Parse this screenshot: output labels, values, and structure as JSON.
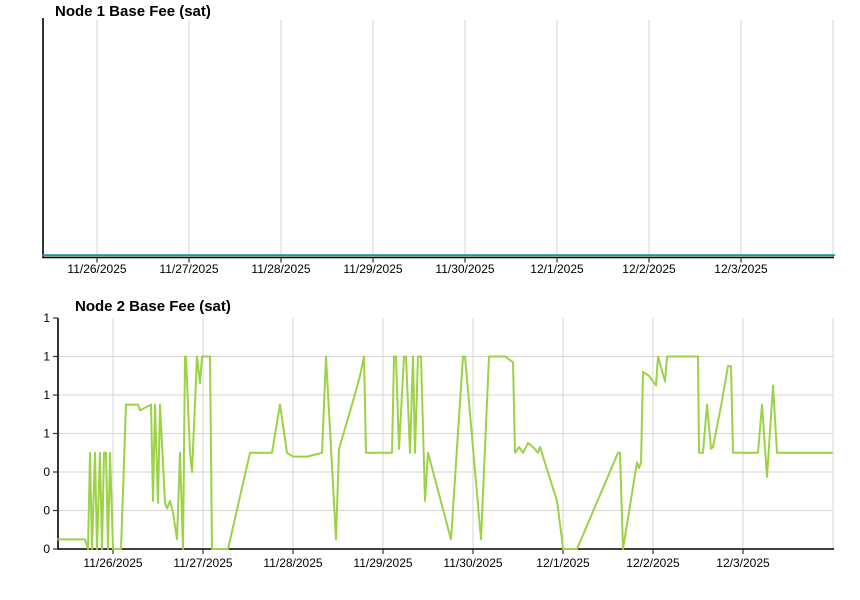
{
  "colors": {
    "node1_line": "#11999E",
    "node2_line": "#9CD247",
    "gridline": "#D6D6D6",
    "axis": "#000000",
    "tick": "#333333",
    "text": "#000000",
    "background": "#FFFFFF"
  },
  "chart_data": [
    {
      "type": "line",
      "title": "Node 1 Base Fee (sat)",
      "xlabel": "",
      "ylabel": "",
      "legend": "none",
      "grid": "vertical date gridlines only, plot otherwise empty",
      "x_tick_labels": [
        "11/26/2025",
        "11/27/2025",
        "11/28/2025",
        "11/29/2025",
        "11/30/2025",
        "12/1/2025",
        "12/2/2025",
        "12/3/2025"
      ],
      "y_tick_labels": [],
      "ylim": [
        0,
        1
      ],
      "series": [
        {
          "name": "Node 1 Base Fee (sat)",
          "color_key": "node1_line",
          "description": "constant flat line hugging the x-axis across the full date range",
          "points": [
            [
              -0.587,
              0
            ],
            [
              8.013,
              0
            ]
          ]
        }
      ]
    },
    {
      "type": "line",
      "title": "Node 2 Base Fee (sat)",
      "xlabel": "",
      "ylabel": "",
      "legend": "none",
      "grid": "vertical date gridlines and horizontal gridlines every 0.2",
      "x_tick_labels": [
        "11/26/2025",
        "11/27/2025",
        "11/28/2025",
        "11/29/2025",
        "11/30/2025",
        "12/1/2025",
        "12/2/2025",
        "12/3/2025"
      ],
      "y_tick_labels": [
        "1",
        "1",
        "1",
        "1",
        "0",
        "0",
        "0"
      ],
      "ylim": [
        0,
        1.2
      ],
      "y_tick_step": 0.2,
      "x_unit": "days since 11/26/2025",
      "series": [
        {
          "name": "Node 2 Base Fee (sat)",
          "color_key": "node2_line",
          "points": [
            [
              -0.611,
              0.05
            ],
            [
              -0.311,
              0.05
            ],
            [
              -0.278,
              0
            ],
            [
              -0.256,
              0.5
            ],
            [
              -0.233,
              0
            ],
            [
              -0.2,
              0.5
            ],
            [
              -0.178,
              0
            ],
            [
              -0.144,
              0.5
            ],
            [
              -0.122,
              0
            ],
            [
              -0.1,
              0.5
            ],
            [
              -0.078,
              0.5
            ],
            [
              -0.056,
              0
            ],
            [
              -0.033,
              0.5
            ],
            [
              0,
              0
            ],
            [
              0.089,
              0
            ],
            [
              0.144,
              0.75
            ],
            [
              0.278,
              0.75
            ],
            [
              0.3,
              0.72
            ],
            [
              0.422,
              0.75
            ],
            [
              0.444,
              0.25
            ],
            [
              0.467,
              0.75
            ],
            [
              0.5,
              0.24
            ],
            [
              0.522,
              0.75
            ],
            [
              0.578,
              0.24
            ],
            [
              0.6,
              0.21
            ],
            [
              0.633,
              0.25
            ],
            [
              0.667,
              0.19
            ],
            [
              0.711,
              0.05
            ],
            [
              0.744,
              0.5
            ],
            [
              0.778,
              0
            ],
            [
              0.8,
              1
            ],
            [
              0.811,
              1
            ],
            [
              0.856,
              0.5
            ],
            [
              0.878,
              0.4
            ],
            [
              0.933,
              1
            ],
            [
              0.967,
              0.86
            ],
            [
              0.989,
              1
            ],
            [
              1.078,
              1
            ],
            [
              1.1,
              0
            ],
            [
              1.278,
              0
            ],
            [
              1.522,
              0.5
            ],
            [
              1.767,
              0.5
            ],
            [
              1.856,
              0.75
            ],
            [
              1.933,
              0.5
            ],
            [
              2.0,
              0.48
            ],
            [
              2.156,
              0.48
            ],
            [
              2.322,
              0.5
            ],
            [
              2.367,
              1
            ],
            [
              2.478,
              0.05
            ],
            [
              2.511,
              0.52
            ],
            [
              2.656,
              0.75
            ],
            [
              2.744,
              0.9
            ],
            [
              2.789,
              1
            ],
            [
              2.811,
              0.5
            ],
            [
              3.1,
              0.5
            ],
            [
              3.122,
              1
            ],
            [
              3.144,
              1
            ],
            [
              3.178,
              0.52
            ],
            [
              3.233,
              1
            ],
            [
              3.256,
              1
            ],
            [
              3.3,
              0.5
            ],
            [
              3.333,
              1
            ],
            [
              3.356,
              0.5
            ],
            [
              3.389,
              1
            ],
            [
              3.422,
              1
            ],
            [
              3.467,
              0.25
            ],
            [
              3.5,
              0.5
            ],
            [
              3.756,
              0.05
            ],
            [
              3.889,
              1
            ],
            [
              3.911,
              1
            ],
            [
              4.089,
              0.05
            ],
            [
              4.178,
              1
            ],
            [
              4.356,
              1
            ],
            [
              4.444,
              0.97
            ],
            [
              4.467,
              0.5
            ],
            [
              4.511,
              0.53
            ],
            [
              4.556,
              0.5
            ],
            [
              4.611,
              0.55
            ],
            [
              4.667,
              0.53
            ],
            [
              4.722,
              0.5
            ],
            [
              4.744,
              0.53
            ],
            [
              4.933,
              0.25
            ],
            [
              4.989,
              0.05
            ],
            [
              5.0,
              0
            ],
            [
              5.156,
              0
            ],
            [
              5.611,
              0.5
            ],
            [
              5.633,
              0.5
            ],
            [
              5.667,
              0
            ],
            [
              5.822,
              0.45
            ],
            [
              5.844,
              0.42
            ],
            [
              5.867,
              0.45
            ],
            [
              5.889,
              0.92
            ],
            [
              5.956,
              0.9
            ],
            [
              6.033,
              0.85
            ],
            [
              6.056,
              1
            ],
            [
              6.133,
              0.87
            ],
            [
              6.156,
              1
            ],
            [
              6.5,
              1
            ],
            [
              6.511,
              0.5
            ],
            [
              6.556,
              0.5
            ],
            [
              6.6,
              0.75
            ],
            [
              6.644,
              0.52
            ],
            [
              6.667,
              0.53
            ],
            [
              6.767,
              0.77
            ],
            [
              6.833,
              0.95
            ],
            [
              6.867,
              0.95
            ],
            [
              6.889,
              0.5
            ],
            [
              7.167,
              0.5
            ],
            [
              7.211,
              0.75
            ],
            [
              7.267,
              0.375
            ],
            [
              7.333,
              0.85
            ],
            [
              7.378,
              0.5
            ],
            [
              7.989,
              0.5
            ]
          ]
        }
      ]
    }
  ]
}
